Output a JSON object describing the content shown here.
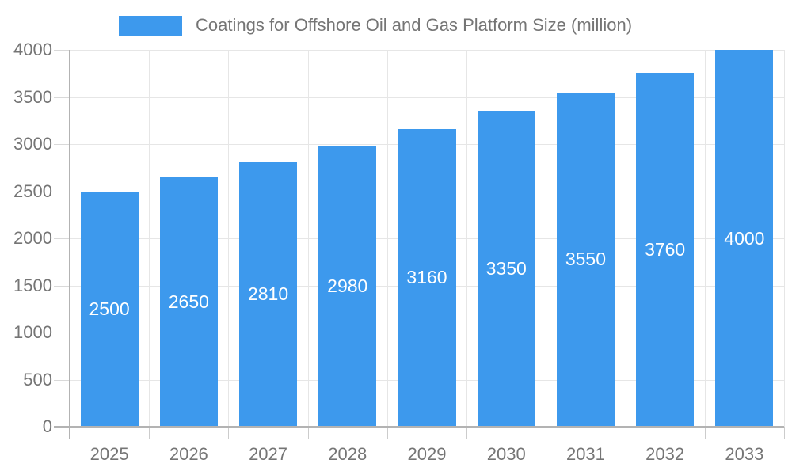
{
  "chart_data": {
    "type": "bar",
    "title": "Coatings for Offshore Oil and Gas Platform Size (million)",
    "categories": [
      "2025",
      "2026",
      "2027",
      "2028",
      "2029",
      "2030",
      "2031",
      "2032",
      "2033"
    ],
    "values": [
      2500,
      2650,
      2810,
      2980,
      3160,
      3350,
      3550,
      3760,
      4000
    ],
    "bar_value_labels": [
      "2500",
      "2650",
      "2810",
      "2980",
      "3160",
      "3350",
      "3550",
      "3760",
      "4000"
    ],
    "xlabel": "",
    "ylabel": "",
    "ylim": [
      0,
      4000
    ],
    "ytick_step": 500,
    "yticks": [
      "0",
      "500",
      "1000",
      "1500",
      "2000",
      "2500",
      "3000",
      "3500",
      "4000"
    ],
    "grid": true,
    "legend_position": "top",
    "colors": {
      "bar": "#3d99ed",
      "bar_label_text": "#ffffff",
      "axis_text": "#757575",
      "gridline": "#e6e6e6",
      "axis_line": "#b3b3b3"
    }
  }
}
